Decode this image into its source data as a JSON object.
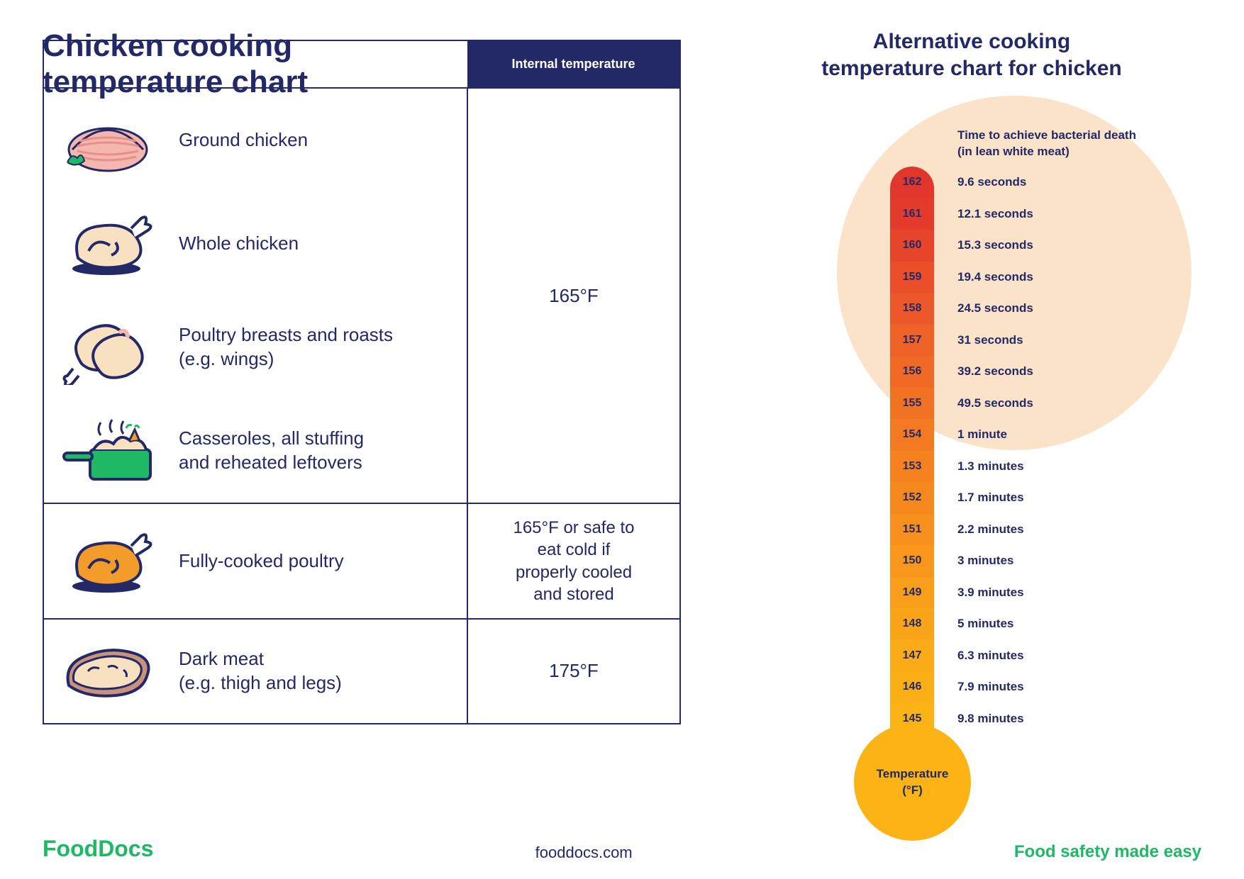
{
  "colors": {
    "primary_dark": "#232966",
    "brand_green": "#1fb864",
    "circle_bg": "#fbe3c9",
    "thermo_gradient_top": "#e1362c",
    "thermo_gradient_bottom": "#fcb316",
    "bulb": "#fcb316",
    "icon_cream": "#f8e1c0",
    "icon_pink": "#f3b7b0",
    "icon_orange": "#f39c2c",
    "icon_green": "#1fb864",
    "icon_brown": "#c9927b"
  },
  "main_title": "Chicken cooking\ntemperature chart",
  "table_header": "Internal temperature",
  "rows_group1": [
    {
      "label": "Ground chicken",
      "icon": "ground-chicken"
    },
    {
      "label": "Whole chicken",
      "icon": "whole-chicken"
    },
    {
      "label": "Poultry breasts and roasts\n(e.g. wings)",
      "icon": "breasts-roasts"
    },
    {
      "label": "Casseroles, all stuffing\nand reheated leftovers",
      "icon": "casserole"
    }
  ],
  "group1_temp": "165°F",
  "row_fully_cooked": {
    "label": "Fully-cooked poultry",
    "temp": "165°F or safe to\neat cold if\nproperly cooled\nand stored",
    "icon": "fully-cooked"
  },
  "row_dark_meat": {
    "label": "Dark meat\n(e.g. thigh and legs)",
    "temp": "175°F",
    "icon": "dark-meat"
  },
  "alt_title": "Alternative cooking\ntemperature chart for chicken",
  "thermo_caption": "Time to achieve bacterial death\n(in lean white meat)",
  "bulb_label": "Temperature\n(°F)",
  "thermo": [
    {
      "temp": "162",
      "time": "9.6 seconds",
      "color": "#e1362c"
    },
    {
      "temp": "161",
      "time": "12.1 seconds",
      "color": "#e43b2c"
    },
    {
      "temp": "160",
      "time": "15.3 seconds",
      "color": "#e7452b"
    },
    {
      "temp": "159",
      "time": "19.4 seconds",
      "color": "#ea4f2a"
    },
    {
      "temp": "158",
      "time": "24.5 seconds",
      "color": "#ec5829"
    },
    {
      "temp": "157",
      "time": "31 seconds",
      "color": "#ee6127"
    },
    {
      "temp": "156",
      "time": "39.2 seconds",
      "color": "#f06a25"
    },
    {
      "temp": "155",
      "time": "49.5 seconds",
      "color": "#f27223"
    },
    {
      "temp": "154",
      "time": "1 minute",
      "color": "#f47a21"
    },
    {
      "temp": "153",
      "time": "1.3 minutes",
      "color": "#f5821f"
    },
    {
      "temp": "152",
      "time": "1.7 minutes",
      "color": "#f6891d"
    },
    {
      "temp": "151",
      "time": "2.2 minutes",
      "color": "#f7901c"
    },
    {
      "temp": "150",
      "time": "3 minutes",
      "color": "#f8971b"
    },
    {
      "temp": "149",
      "time": "3.9 minutes",
      "color": "#f99e1a"
    },
    {
      "temp": "148",
      "time": "5 minutes",
      "color": "#faa519"
    },
    {
      "temp": "147",
      "time": "6.3 minutes",
      "color": "#fbab18"
    },
    {
      "temp": "146",
      "time": "7.9 minutes",
      "color": "#fbaf17"
    },
    {
      "temp": "145",
      "time": "9.8 minutes",
      "color": "#fcb316"
    }
  ],
  "footer": {
    "logo_prefix": "Food",
    "logo_suffix": "Docs",
    "center": "fooddocs.com",
    "right": "Food safety made easy"
  }
}
